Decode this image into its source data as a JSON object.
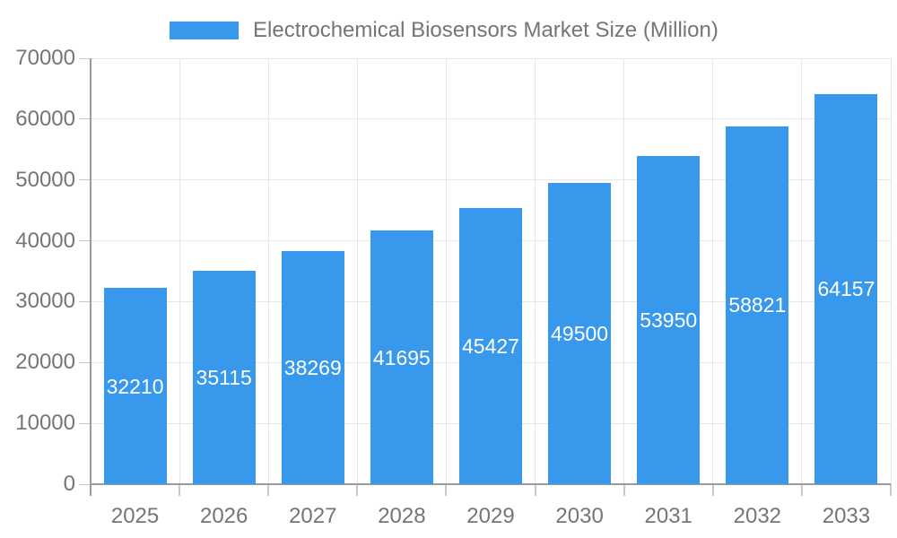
{
  "page": {
    "background_color": "#ffffff"
  },
  "legend": {
    "label": "Electrochemical Biosensors Market Size (Million)",
    "swatch_color": "#3898ec"
  },
  "chart_data": {
    "type": "bar",
    "title": "Electrochemical Biosensors Market Size (Million)",
    "categories": [
      "2025",
      "2026",
      "2027",
      "2028",
      "2029",
      "2030",
      "2031",
      "2032",
      "2033"
    ],
    "series": [
      {
        "name": "Electrochemical Biosensors Market Size (Million)",
        "values": [
          32210,
          35115,
          38269,
          41695,
          45427,
          49500,
          53950,
          58821,
          64157
        ]
      }
    ],
    "value_labels": [
      "32210",
      "35115",
      "38269",
      "41695",
      "45427",
      "49500",
      "53950",
      "58821",
      "64157"
    ],
    "xlabel": "",
    "ylabel": "",
    "ylim": [
      0,
      70000
    ],
    "ytick_step": 10000,
    "yticks": [
      0,
      10000,
      20000,
      30000,
      40000,
      50000,
      60000,
      70000
    ],
    "ytick_labels": [
      "0",
      "10000",
      "20000",
      "30000",
      "40000",
      "50000",
      "60000",
      "70000"
    ],
    "grid": true,
    "legend_position": "top-center",
    "bar_color": "#3898ec",
    "value_label_color": "#ffffff",
    "axis_text_color": "#757575",
    "gridline_color": "#e6e6e6",
    "axis_line_color": "#9a9a9a"
  }
}
